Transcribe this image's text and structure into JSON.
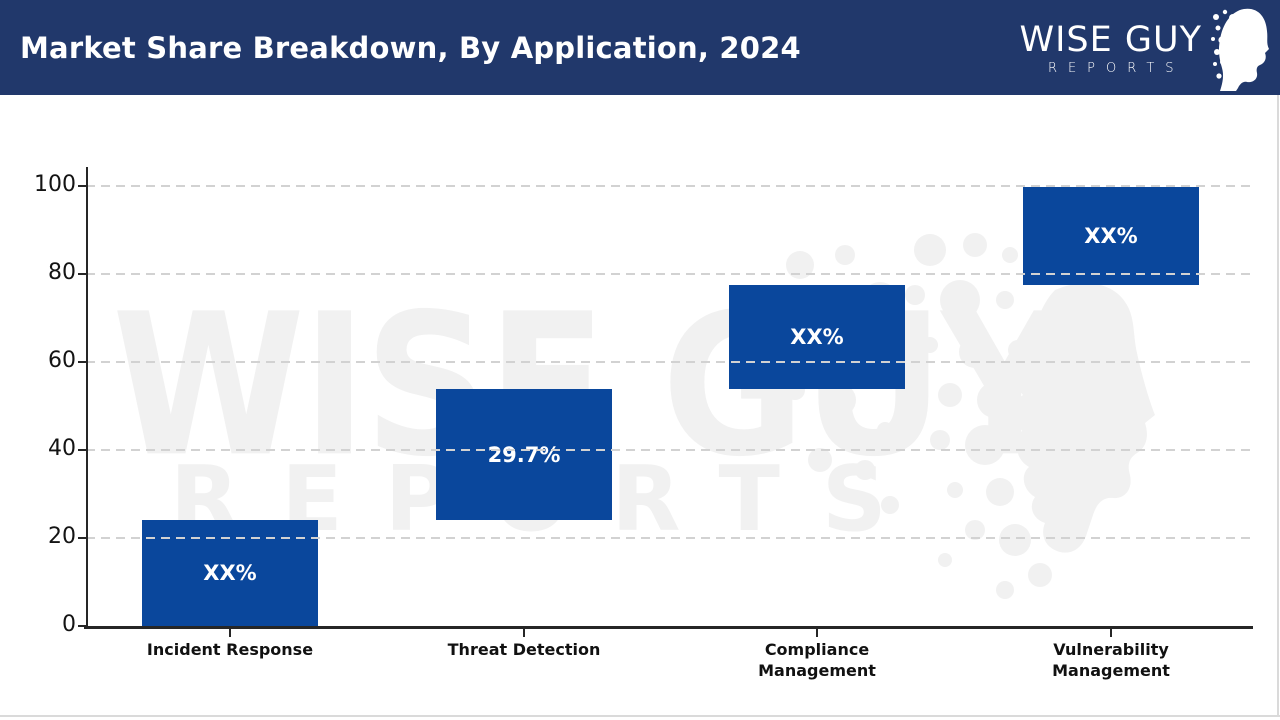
{
  "header": {
    "title": "Market Share Breakdown, By Application, 2024",
    "bg_color": "#21386b",
    "logo": {
      "line1": "WISE GUY",
      "line2": "REPORTS"
    }
  },
  "watermark": {
    "line1": "WISE GUY",
    "line2": "REPORTS"
  },
  "chart_data": {
    "type": "bar",
    "subtype": "floating-waterfall",
    "title": "Market Share Breakdown, By Application, 2024",
    "categories": [
      "Incident Response",
      "Threat Detection",
      "Compliance Management",
      "Vulnerability Management"
    ],
    "segments": [
      {
        "category": "Incident Response",
        "label": "XX%",
        "start": 0,
        "end": 24.1
      },
      {
        "category": "Threat Detection",
        "label": "29.7%",
        "start": 24.1,
        "end": 53.8
      },
      {
        "category": "Compliance Management",
        "label": "XX%",
        "start": 53.8,
        "end": 77.5
      },
      {
        "category": "Vulnerability Management",
        "label": "XX%",
        "start": 77.5,
        "end": 99.8
      }
    ],
    "yticks": [
      0,
      20,
      40,
      60,
      80,
      100
    ],
    "ylim": [
      0,
      105
    ],
    "xlabel": "",
    "ylabel": "",
    "bar_color": "#0a479c",
    "label_color": "#ffffff",
    "grid": "horizontal-dashed",
    "grid_color": "#d2d2d2",
    "legend": "none"
  }
}
